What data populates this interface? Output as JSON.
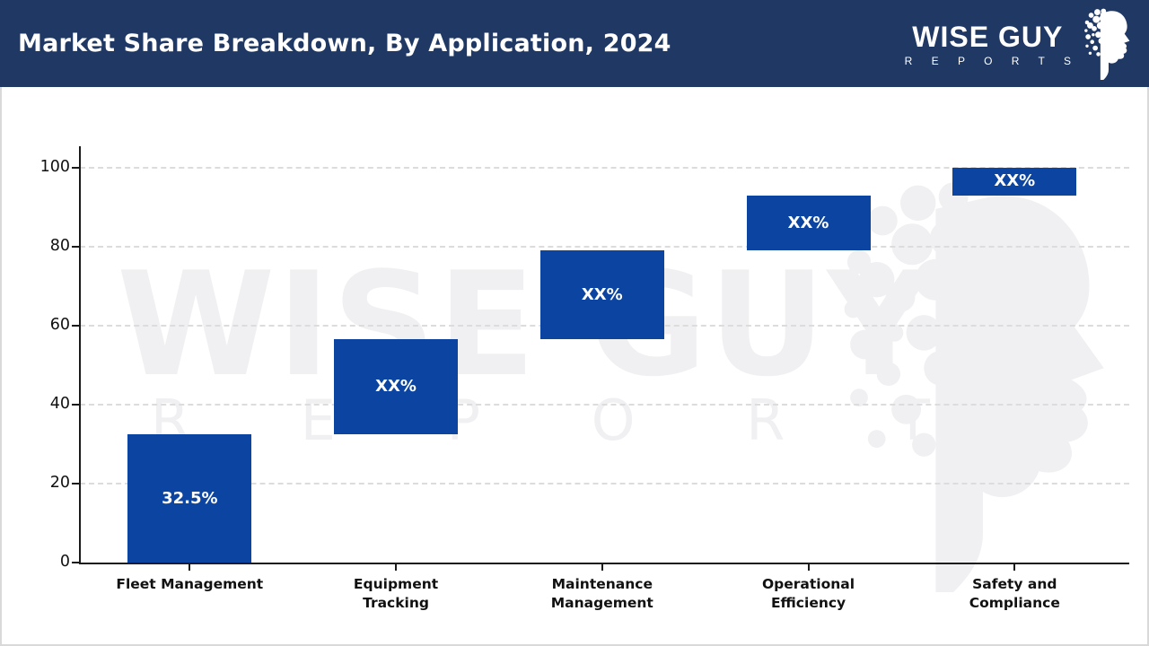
{
  "header": {
    "title": "Market Share Breakdown, By Application, 2024",
    "logo": {
      "line1": "WISE GUY",
      "line2": "R E P O R T S"
    }
  },
  "watermark": {
    "line1": "WISE GUY",
    "line2": "R E P O R T S"
  },
  "colors": {
    "header_bg": "#1F3864",
    "bar": "#0B45A1",
    "bar_label": "#ffffff",
    "gridline": "#DCDCDC",
    "axis": "#1a1a1a",
    "watermark": "#F0F0F2"
  },
  "chart_data": {
    "type": "bar",
    "subtype": "waterfall",
    "title": "Market Share Breakdown, By Application, 2024",
    "categories": [
      "Fleet Management",
      "Equipment Tracking",
      "Maintenance Management",
      "Operational Efficiency",
      "Safety and Compliance"
    ],
    "series": [
      {
        "name": "Market Share (%)",
        "starts": [
          0,
          32.5,
          56.5,
          79,
          93
        ],
        "ends": [
          32.5,
          56.5,
          79,
          93,
          100
        ]
      }
    ],
    "bar_labels": [
      "32.5%",
      "XX%",
      "XX%",
      "XX%",
      "XX%"
    ],
    "xlabel": "",
    "ylabel": "",
    "ylim": [
      0,
      100
    ],
    "yticks": [
      0,
      20,
      40,
      60,
      80,
      100
    ],
    "grid": "horizontal-dashed",
    "legend": "none"
  }
}
